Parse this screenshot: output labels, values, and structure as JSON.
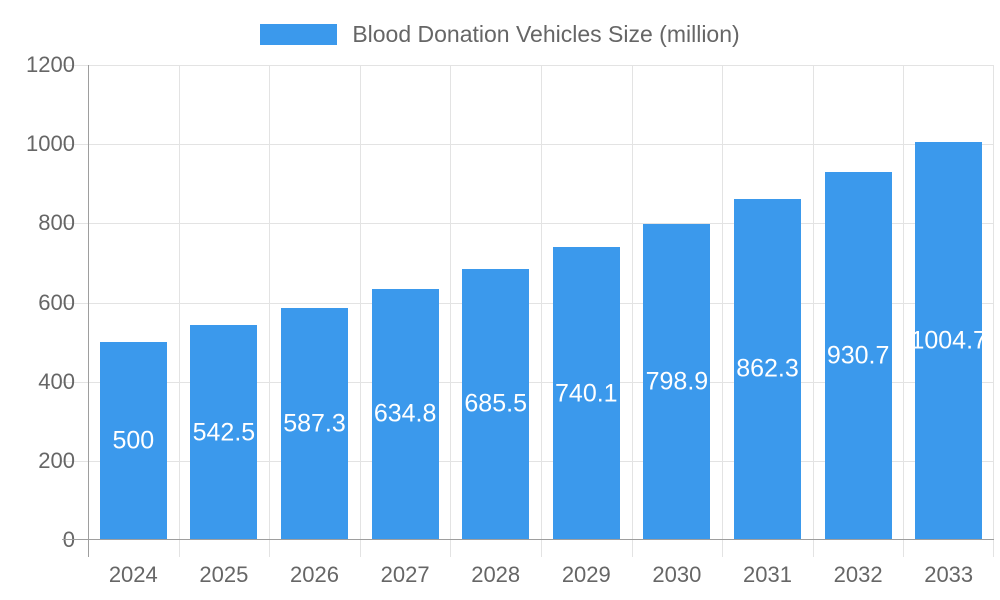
{
  "chart_data": {
    "type": "bar",
    "title": "Blood Donation Vehicles Size (million)",
    "legend": {
      "position": "top",
      "entries": [
        {
          "label": "Blood Donation Vehicles Size (million)",
          "color": "#3B99EC"
        }
      ]
    },
    "categories": [
      "2024",
      "2025",
      "2026",
      "2027",
      "2028",
      "2029",
      "2030",
      "2031",
      "2032",
      "2033"
    ],
    "series": [
      {
        "name": "Blood Donation Vehicles Size (million)",
        "values": [
          500,
          542.5,
          587.3,
          634.8,
          685.5,
          740.1,
          798.9,
          862.3,
          930.7,
          1004.7
        ]
      }
    ],
    "ylim": [
      0,
      1200
    ],
    "yticks": [
      0,
      200,
      400,
      600,
      800,
      1000,
      1200
    ],
    "grid": true,
    "value_labels_inside_bars": true,
    "colors": {
      "bar": "#3B99EC",
      "axis_line": "#9e9e9e",
      "gridline": "#e3e3e3",
      "label_text": "#666666",
      "value_text": "#ffffff",
      "background": "#ffffff"
    }
  }
}
